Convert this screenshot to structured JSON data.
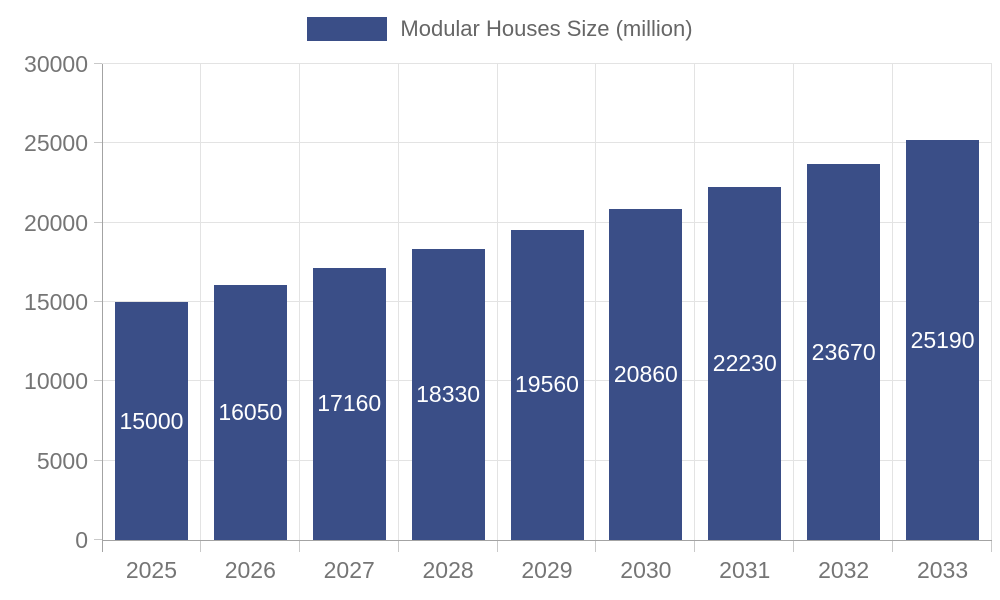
{
  "legend": {
    "label": "Modular Houses Size (million)"
  },
  "chart_data": {
    "type": "bar",
    "title": "Modular Houses Size (million)",
    "categories": [
      "2025",
      "2026",
      "2027",
      "2028",
      "2029",
      "2030",
      "2031",
      "2032",
      "2033"
    ],
    "values": [
      15000,
      16050,
      17160,
      18330,
      19560,
      20860,
      22230,
      23670,
      25190
    ],
    "value_labels": [
      "15000",
      "16050",
      "17160",
      "18330",
      "19560",
      "20860",
      "22230",
      "23670",
      "25190"
    ],
    "xlabel": "",
    "ylabel": "",
    "ylim": [
      0,
      30000
    ],
    "yticks": [
      0,
      5000,
      10000,
      15000,
      20000,
      25000,
      30000
    ],
    "ytick_labels": [
      "0",
      "5000",
      "10000",
      "15000",
      "20000",
      "25000",
      "30000"
    ],
    "grid": true,
    "legend_position": "top",
    "colors": {
      "bar": "#3A4E87",
      "value_label": "#FFFFFF",
      "axis_text": "#757575",
      "legend_text": "#666666",
      "grid_line": "#E3E3E3",
      "axis_line": "#A3A3A3",
      "tick_line": "#C9C9C9",
      "background": "#FFFFFF"
    }
  }
}
